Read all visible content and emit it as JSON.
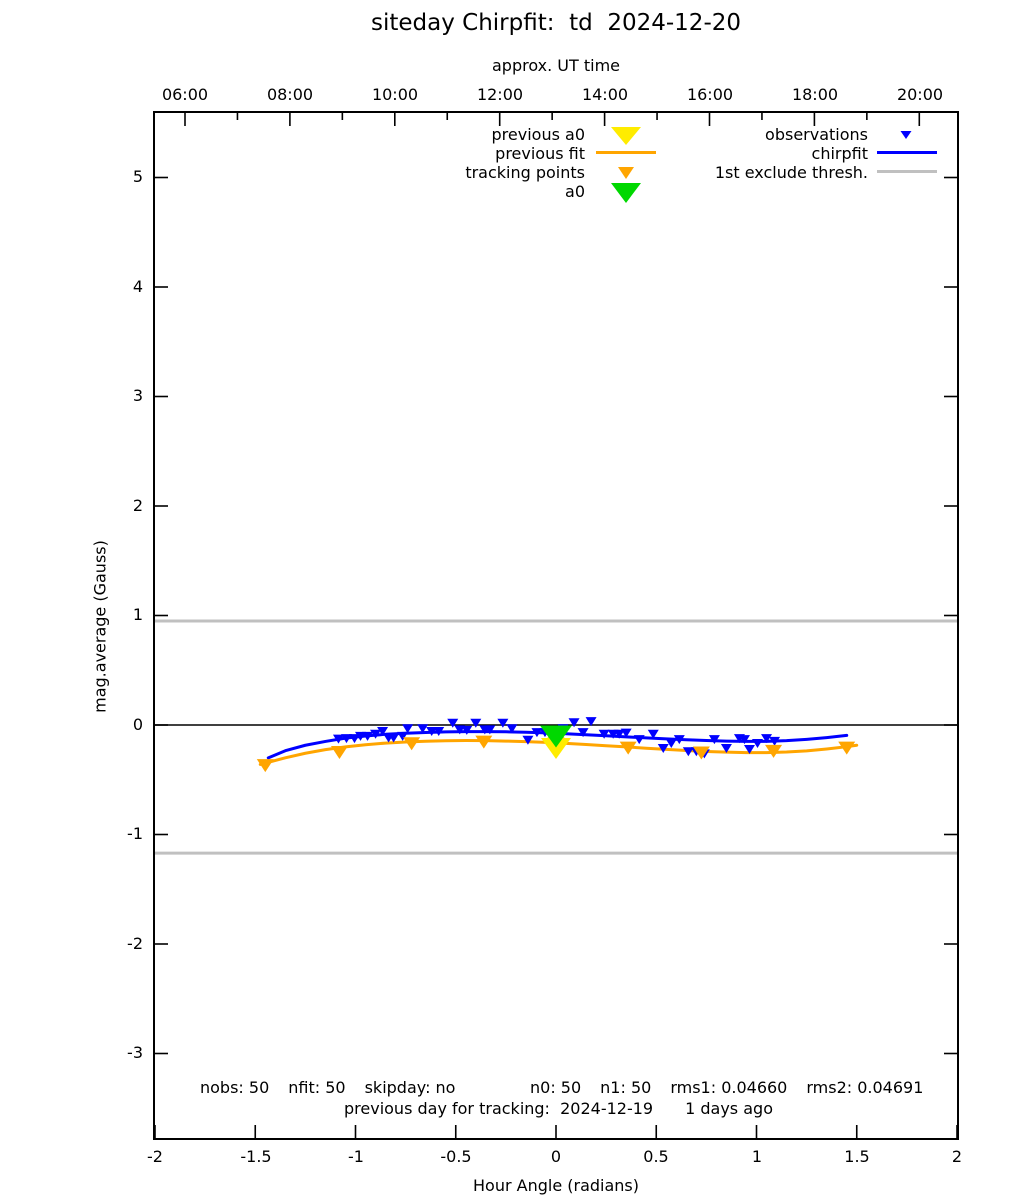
{
  "title": "siteday Chirpfit:  td  2024-12-20",
  "axes": {
    "top": {
      "label": "approx. UT time",
      "tick_labels": [
        "06:00",
        "08:00",
        "10:00",
        "12:00",
        "14:00",
        "16:00",
        "18:00",
        "20:00"
      ]
    },
    "bottom": {
      "label": "Hour Angle (radians)",
      "tick_labels": [
        "-2",
        "-1.5",
        "-1",
        "-0.5",
        "0",
        "0.5",
        "1",
        "1.5",
        "2"
      ]
    },
    "left": {
      "label": "mag.average (Gauss)",
      "tick_labels": [
        "5",
        "4",
        "3",
        "2",
        "1",
        "0",
        "-1",
        "-2",
        "-3"
      ]
    }
  },
  "legend": {
    "left": [
      {
        "label": "previous a0",
        "marker": "triangle-large",
        "color": "#ffec00"
      },
      {
        "label": "previous fit",
        "marker": "line",
        "color": "#ffa500"
      },
      {
        "label": "tracking points",
        "marker": "triangle-small",
        "color": "#ffa500"
      },
      {
        "label": "a0",
        "marker": "triangle-large",
        "color": "#00d800"
      }
    ],
    "right": [
      {
        "label": "observations",
        "marker": "triangle-tiny",
        "color": "#0000ff"
      },
      {
        "label": "chirpfit",
        "marker": "line",
        "color": "#0000ff"
      },
      {
        "label": "1st exclude thresh.",
        "marker": "line",
        "color": "#c0c0c0"
      }
    ]
  },
  "stats": {
    "row1_left": [
      "nobs: 50",
      "nfit: 50",
      "skipday: no"
    ],
    "row1_right": [
      "n0: 50",
      "n1: 50",
      "rms1: 0.04660",
      "rms2: 0.04691"
    ],
    "row2": [
      "previous day for tracking:  2024-12-19",
      "1 days ago"
    ]
  },
  "chart_data": {
    "type": "scatter",
    "title": "siteday Chirpfit:  td  2024-12-20",
    "xlabel": "Hour Angle (radians)",
    "x2label": "approx. UT time",
    "ylabel": "mag.average (Gauss)",
    "xlim": [
      -2,
      2
    ],
    "ylim": [
      -3.76,
      5.6
    ],
    "x2_hours": [
      6,
      20
    ],
    "grid": false,
    "legend_position": "top-inside",
    "zero_line": 0,
    "exclude_thresholds": [
      0.95,
      -1.17
    ],
    "series": [
      {
        "name": "previous fit",
        "type": "line",
        "color": "#ffa500",
        "width": 3,
        "points": [
          [
            -1.475,
            -0.36
          ],
          [
            -1.35,
            -0.3
          ],
          [
            -1.25,
            -0.258
          ],
          [
            -1.15,
            -0.225
          ],
          [
            -1.05,
            -0.2
          ],
          [
            -0.95,
            -0.18
          ],
          [
            -0.85,
            -0.165
          ],
          [
            -0.75,
            -0.155
          ],
          [
            -0.65,
            -0.148
          ],
          [
            -0.55,
            -0.144
          ],
          [
            -0.45,
            -0.142
          ],
          [
            -0.35,
            -0.143
          ],
          [
            -0.25,
            -0.147
          ],
          [
            -0.15,
            -0.152
          ],
          [
            -0.05,
            -0.159
          ],
          [
            0.05,
            -0.168
          ],
          [
            0.15,
            -0.178
          ],
          [
            0.25,
            -0.189
          ],
          [
            0.35,
            -0.2
          ],
          [
            0.45,
            -0.212
          ],
          [
            0.55,
            -0.223
          ],
          [
            0.65,
            -0.233
          ],
          [
            0.75,
            -0.242
          ],
          [
            0.85,
            -0.248
          ],
          [
            0.95,
            -0.252
          ],
          [
            1.05,
            -0.252
          ],
          [
            1.15,
            -0.247
          ],
          [
            1.25,
            -0.236
          ],
          [
            1.35,
            -0.219
          ],
          [
            1.45,
            -0.198
          ],
          [
            1.5,
            -0.185
          ]
        ]
      },
      {
        "name": "chirpfit",
        "type": "line",
        "color": "#0000ff",
        "width": 3,
        "points": [
          [
            -1.435,
            -0.3
          ],
          [
            -1.35,
            -0.235
          ],
          [
            -1.25,
            -0.185
          ],
          [
            -1.15,
            -0.15
          ],
          [
            -1.05,
            -0.12
          ],
          [
            -0.95,
            -0.1
          ],
          [
            -0.85,
            -0.085
          ],
          [
            -0.75,
            -0.075
          ],
          [
            -0.65,
            -0.068
          ],
          [
            -0.55,
            -0.063
          ],
          [
            -0.45,
            -0.06
          ],
          [
            -0.35,
            -0.06
          ],
          [
            -0.25,
            -0.062
          ],
          [
            -0.15,
            -0.066
          ],
          [
            -0.05,
            -0.072
          ],
          [
            0.05,
            -0.08
          ],
          [
            0.15,
            -0.089
          ],
          [
            0.25,
            -0.098
          ],
          [
            0.35,
            -0.108
          ],
          [
            0.45,
            -0.118
          ],
          [
            0.55,
            -0.127
          ],
          [
            0.65,
            -0.135
          ],
          [
            0.75,
            -0.142
          ],
          [
            0.85,
            -0.147
          ],
          [
            0.95,
            -0.15
          ],
          [
            1.05,
            -0.149
          ],
          [
            1.15,
            -0.143
          ],
          [
            1.25,
            -0.131
          ],
          [
            1.35,
            -0.115
          ],
          [
            1.45,
            -0.095
          ]
        ]
      },
      {
        "name": "observations",
        "type": "points",
        "color": "#0000ff",
        "msize": [
          11,
          9
        ],
        "points": [
          [
            -1.085,
            -0.125
          ],
          [
            -1.045,
            -0.12
          ],
          [
            -1.005,
            -0.12
          ],
          [
            -0.975,
            -0.1
          ],
          [
            -0.94,
            -0.1
          ],
          [
            -0.9,
            -0.08
          ],
          [
            -0.865,
            -0.055
          ],
          [
            -0.835,
            -0.115
          ],
          [
            -0.81,
            -0.115
          ],
          [
            -0.765,
            -0.1
          ],
          [
            -0.74,
            -0.03
          ],
          [
            -0.665,
            -0.03
          ],
          [
            -0.62,
            -0.055
          ],
          [
            -0.585,
            -0.055
          ],
          [
            -0.515,
            0.02
          ],
          [
            -0.48,
            -0.04
          ],
          [
            -0.445,
            -0.045
          ],
          [
            -0.4,
            0.02
          ],
          [
            -0.355,
            -0.04
          ],
          [
            -0.33,
            -0.04
          ],
          [
            -0.265,
            0.02
          ],
          [
            -0.22,
            -0.03
          ],
          [
            -0.14,
            -0.135
          ],
          [
            -0.095,
            -0.065
          ],
          [
            -0.055,
            -0.065
          ],
          [
            -0.03,
            -0.045
          ],
          [
            0.035,
            -0.03
          ],
          [
            0.09,
            0.025
          ],
          [
            0.135,
            -0.065
          ],
          [
            0.175,
            0.035
          ],
          [
            0.24,
            -0.08
          ],
          [
            0.285,
            -0.08
          ],
          [
            0.315,
            -0.08
          ],
          [
            0.35,
            -0.07
          ],
          [
            0.415,
            -0.13
          ],
          [
            0.485,
            -0.08
          ],
          [
            0.535,
            -0.21
          ],
          [
            0.575,
            -0.165
          ],
          [
            0.615,
            -0.13
          ],
          [
            0.66,
            -0.24
          ],
          [
            0.7,
            -0.24
          ],
          [
            0.74,
            -0.26
          ],
          [
            0.79,
            -0.13
          ],
          [
            0.85,
            -0.21
          ],
          [
            0.915,
            -0.12
          ],
          [
            0.94,
            -0.13
          ],
          [
            0.965,
            -0.22
          ],
          [
            1.005,
            -0.165
          ],
          [
            1.05,
            -0.12
          ],
          [
            1.09,
            -0.145
          ]
        ]
      },
      {
        "name": "tracking points",
        "type": "points",
        "color": "#ffa500",
        "msize": [
          17,
          13
        ],
        "points": [
          [
            -1.45,
            -0.365
          ],
          [
            -1.08,
            -0.245
          ],
          [
            -0.72,
            -0.165
          ],
          [
            -0.36,
            -0.15
          ],
          [
            0,
            -0.165
          ],
          [
            0.36,
            -0.205
          ],
          [
            0.725,
            -0.25
          ],
          [
            1.085,
            -0.235
          ],
          [
            1.45,
            -0.205
          ]
        ]
      },
      {
        "name": "previous a0",
        "type": "points",
        "color": "#ffec00",
        "msize": [
          30,
          21
        ],
        "points": [
          [
            0,
            -0.205
          ]
        ]
      },
      {
        "name": "a0",
        "type": "points",
        "color": "#00d800",
        "msize": [
          32,
          22
        ],
        "points": [
          [
            0,
            -0.095
          ]
        ]
      }
    ]
  }
}
